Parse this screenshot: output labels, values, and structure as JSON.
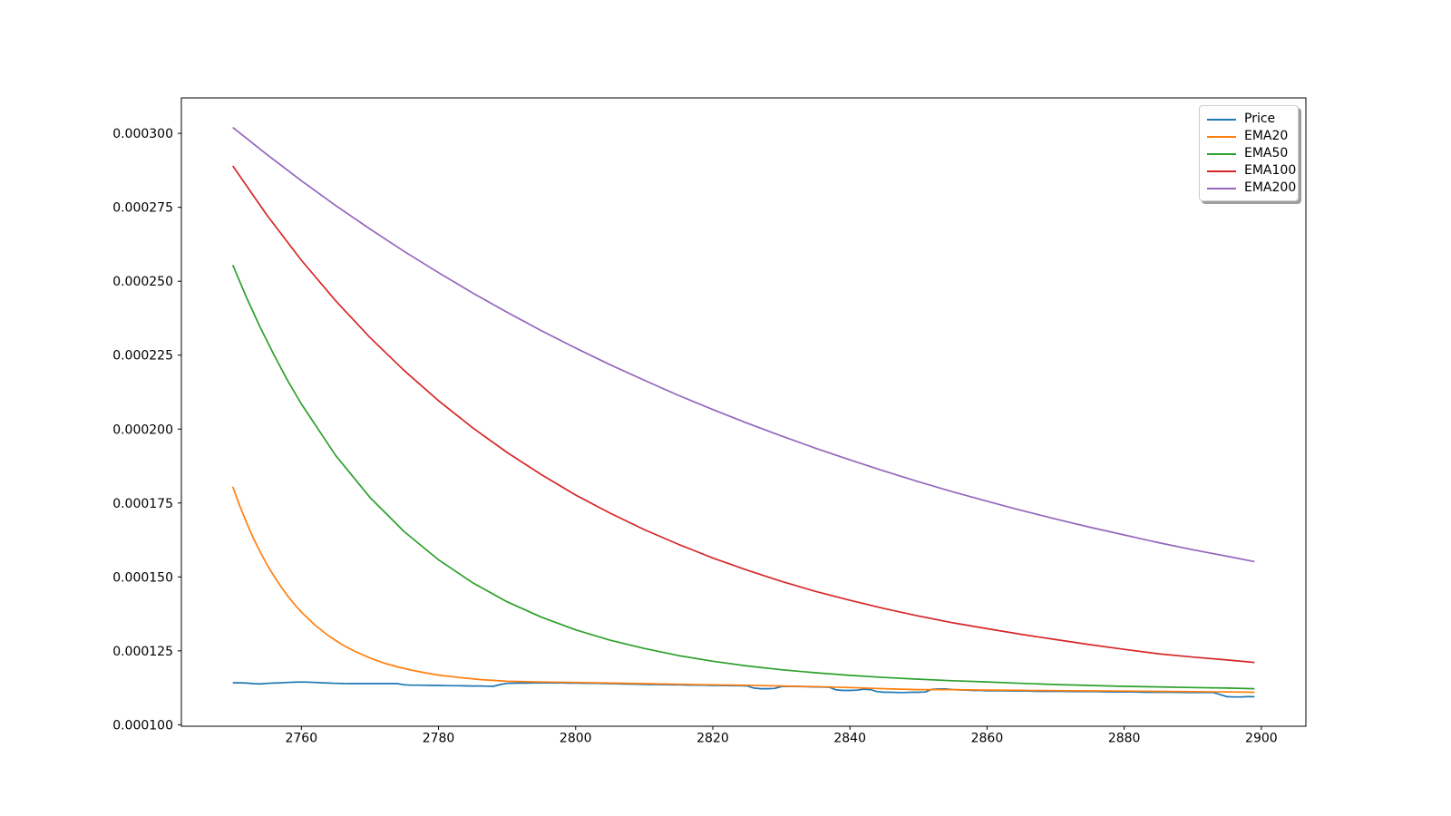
{
  "chart_data": {
    "type": "line",
    "title": "",
    "xlabel": "",
    "ylabel": "",
    "grid": false,
    "x_axis": {
      "lim": [
        2742.5,
        2906.5
      ],
      "ticks": [
        2760,
        2780,
        2800,
        2820,
        2840,
        2860,
        2880,
        2900
      ],
      "tick_labels": [
        "2760",
        "2780",
        "2800",
        "2820",
        "2840",
        "2860",
        "2880",
        "2900"
      ]
    },
    "y_axis": {
      "unit_scale": 1e-06,
      "lim": [
        99.5,
        312
      ],
      "ticks": [
        100,
        125,
        150,
        175,
        200,
        225,
        250,
        275,
        300
      ],
      "tick_labels": [
        "0.000100",
        "0.000125",
        "0.000150",
        "0.000175",
        "0.000200",
        "0.000225",
        "0.000250",
        "0.000275",
        "0.000300"
      ]
    },
    "legend": {
      "location": "upper right"
    },
    "series": [
      {
        "name": "Price",
        "color": "#1f77b4",
        "x_range": [
          2750,
          2899
        ],
        "y": [
          114.2,
          114.2,
          114.1,
          113.9,
          113.8,
          114.0,
          114.1,
          114.2,
          114.3,
          114.4,
          114.45,
          114.4,
          114.3,
          114.2,
          114.1,
          114.0,
          113.95,
          113.9,
          113.9,
          113.9,
          113.9,
          113.9,
          113.9,
          113.9,
          113.9,
          113.5,
          113.4,
          113.4,
          113.35,
          113.3,
          113.3,
          113.25,
          113.2,
          113.2,
          113.15,
          113.1,
          113.1,
          113.05,
          113.0,
          113.6,
          114.0,
          114.05,
          114.1,
          114.1,
          114.15,
          114.15,
          114.2,
          114.2,
          114.15,
          114.1,
          114.1,
          114.05,
          114.0,
          114.0,
          113.95,
          113.9,
          113.85,
          113.8,
          113.75,
          113.7,
          113.65,
          113.6,
          113.6,
          113.55,
          113.5,
          113.5,
          113.45,
          113.4,
          113.4,
          113.35,
          113.3,
          113.3,
          113.25,
          113.2,
          113.2,
          113.15,
          112.4,
          112.2,
          112.2,
          112.3,
          112.9,
          113.0,
          112.95,
          112.9,
          112.85,
          112.8,
          112.75,
          112.7,
          111.8,
          111.6,
          111.6,
          111.7,
          112.0,
          111.9,
          111.2,
          111.0,
          111.0,
          110.9,
          110.9,
          111.0,
          111.0,
          111.1,
          112.0,
          112.1,
          112.1,
          111.9,
          111.8,
          111.7,
          111.6,
          111.6,
          111.5,
          111.5,
          111.5,
          111.45,
          111.4,
          111.4,
          111.4,
          111.35,
          111.3,
          111.3,
          111.3,
          111.3,
          111.25,
          111.2,
          111.2,
          111.2,
          111.2,
          111.15,
          111.1,
          111.1,
          111.1,
          111.1,
          111.05,
          111.0,
          111.0,
          111.0,
          111.0,
          111.0,
          110.95,
          110.9,
          110.9,
          110.9,
          110.9,
          110.9,
          110.2,
          109.5,
          109.4,
          109.4,
          109.5,
          109.5
        ]
      },
      {
        "name": "EMA20",
        "color": "#ff7f0e",
        "x": [
          2750,
          2751,
          2752,
          2753,
          2754,
          2755,
          2756,
          2757,
          2758,
          2759,
          2760,
          2762,
          2764,
          2766,
          2768,
          2770,
          2772,
          2774,
          2776,
          2778,
          2780,
          2783,
          2786,
          2790,
          2795,
          2800,
          2805,
          2810,
          2815,
          2820,
          2825,
          2830,
          2835,
          2840,
          2845,
          2850,
          2855,
          2860,
          2865,
          2870,
          2875,
          2880,
          2885,
          2890,
          2895,
          2899
        ],
        "y": [
          180.5,
          174.1,
          168.4,
          163.1,
          158.4,
          154.1,
          150.3,
          146.8,
          143.6,
          140.7,
          138.1,
          133.7,
          130.0,
          127.0,
          124.6,
          122.6,
          120.9,
          119.6,
          118.5,
          117.6,
          116.8,
          116.0,
          115.3,
          114.7,
          114.45,
          114.3,
          114.1,
          113.9,
          113.7,
          113.5,
          113.35,
          113.1,
          112.9,
          112.6,
          112.2,
          111.9,
          111.9,
          111.75,
          111.65,
          111.55,
          111.45,
          111.4,
          111.3,
          111.2,
          111.1,
          111.0
        ]
      },
      {
        "name": "EMA50",
        "color": "#2ca02c",
        "x": [
          2750,
          2752,
          2754,
          2756,
          2758,
          2760,
          2765,
          2770,
          2775,
          2780,
          2785,
          2790,
          2795,
          2800,
          2805,
          2810,
          2815,
          2820,
          2825,
          2830,
          2835,
          2840,
          2845,
          2850,
          2855,
          2860,
          2865,
          2870,
          2875,
          2880,
          2885,
          2890,
          2895,
          2899
        ],
        "y": [
          255.5,
          244.5,
          234.4,
          225.1,
          216.4,
          208.5,
          191.1,
          176.9,
          165.3,
          155.8,
          148.0,
          141.6,
          136.4,
          132.1,
          128.6,
          125.8,
          123.4,
          121.5,
          119.9,
          118.6,
          117.6,
          116.7,
          116.0,
          115.4,
          114.9,
          114.5,
          114.0,
          113.6,
          113.3,
          113.0,
          112.8,
          112.6,
          112.4,
          112.2
        ]
      },
      {
        "name": "EMA100",
        "color": "#d62728",
        "x": [
          2750,
          2755,
          2760,
          2765,
          2770,
          2775,
          2780,
          2785,
          2790,
          2795,
          2800,
          2805,
          2810,
          2815,
          2820,
          2825,
          2830,
          2835,
          2840,
          2845,
          2850,
          2855,
          2860,
          2865,
          2870,
          2875,
          2880,
          2885,
          2890,
          2895,
          2899
        ],
        "y": [
          289.0,
          272.3,
          257.1,
          243.4,
          231.0,
          219.8,
          209.6,
          200.4,
          192.1,
          184.6,
          177.7,
          171.6,
          166.0,
          161.0,
          156.4,
          152.3,
          148.5,
          145.1,
          142.1,
          139.3,
          136.8,
          134.5,
          132.5,
          130.6,
          128.8,
          127.1,
          125.5,
          124.0,
          122.9,
          121.9,
          121.1
        ]
      },
      {
        "name": "EMA200",
        "color": "#9467bd",
        "x": [
          2750,
          2755,
          2760,
          2765,
          2770,
          2775,
          2780,
          2785,
          2790,
          2795,
          2800,
          2805,
          2810,
          2815,
          2820,
          2825,
          2830,
          2835,
          2840,
          2845,
          2850,
          2855,
          2860,
          2865,
          2870,
          2875,
          2880,
          2885,
          2890,
          2895,
          2899
        ],
        "y": [
          302.0,
          292.8,
          284.0,
          275.6,
          267.7,
          260.1,
          252.9,
          246.0,
          239.5,
          233.3,
          227.4,
          221.8,
          216.5,
          211.4,
          206.6,
          202.0,
          197.7,
          193.5,
          189.6,
          185.8,
          182.2,
          178.8,
          175.6,
          172.5,
          169.6,
          166.8,
          164.2,
          161.6,
          159.2,
          157.0,
          155.2
        ]
      }
    ]
  }
}
